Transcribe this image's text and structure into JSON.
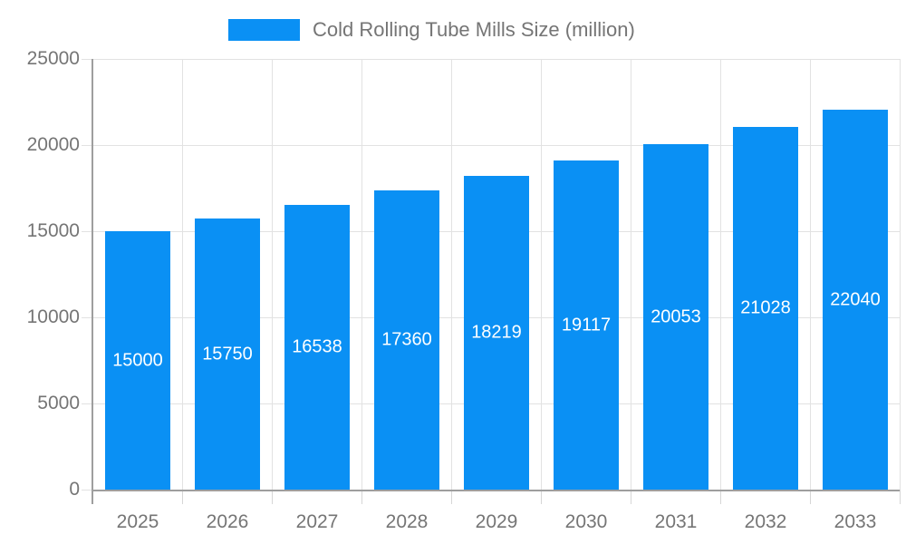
{
  "legend": {
    "label": "Cold Rolling Tube Mills Size (million)",
    "swatch_color": "#0a90f4"
  },
  "colors": {
    "bar": "#0a90f4",
    "grid": "#e2e2e2",
    "axis": "#9e9e9e",
    "text": "#757575",
    "value_label": "#ffffff",
    "background": "#ffffff"
  },
  "chart_data": {
    "type": "bar",
    "title": "Cold Rolling Tube Mills Size (million)",
    "categories": [
      "2025",
      "2026",
      "2027",
      "2028",
      "2029",
      "2030",
      "2031",
      "2032",
      "2033"
    ],
    "values": [
      15000,
      15750,
      16538,
      17360,
      18219,
      19117,
      20053,
      21028,
      22040
    ],
    "xlabel": "",
    "ylabel": "",
    "ylim": [
      0,
      25000
    ],
    "yticks": [
      0,
      5000,
      10000,
      15000,
      20000,
      25000
    ],
    "grid": true,
    "legend_position": "top-center",
    "value_labels": "inside-center"
  }
}
